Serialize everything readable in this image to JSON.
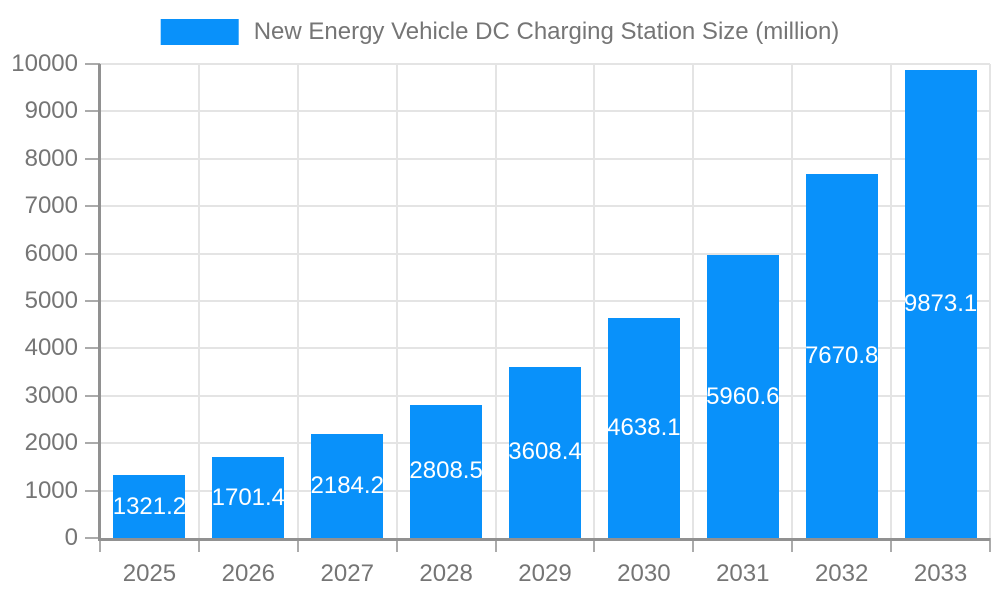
{
  "chart_data": {
    "type": "bar",
    "title": "",
    "legend": {
      "label": "New Energy Vehicle DC Charging Station Size (million)",
      "position": "top"
    },
    "categories": [
      "2025",
      "2026",
      "2027",
      "2028",
      "2029",
      "2030",
      "2031",
      "2032",
      "2033"
    ],
    "series": [
      {
        "name": "New Energy Vehicle DC Charging Station Size (million)",
        "values": [
          1321.2,
          1701.4,
          2184.2,
          2808.5,
          3608.4,
          4638.1,
          5960.6,
          7670.8,
          9873.1
        ]
      }
    ],
    "value_labels_shown": true,
    "xlabel": "",
    "ylabel": "",
    "ylim": [
      0,
      10000
    ],
    "yticks": [
      0,
      1000,
      2000,
      3000,
      4000,
      5000,
      6000,
      7000,
      8000,
      9000,
      10000
    ],
    "grid": true,
    "colors": {
      "bar": "#0991fa",
      "bar_value_text": "#ffffff",
      "axis_text": "#757575",
      "legend_text": "#757575",
      "gridline": "#e4e4e4",
      "axis_line": "#919191",
      "tick": "#ababab",
      "background": "#ffffff"
    }
  }
}
